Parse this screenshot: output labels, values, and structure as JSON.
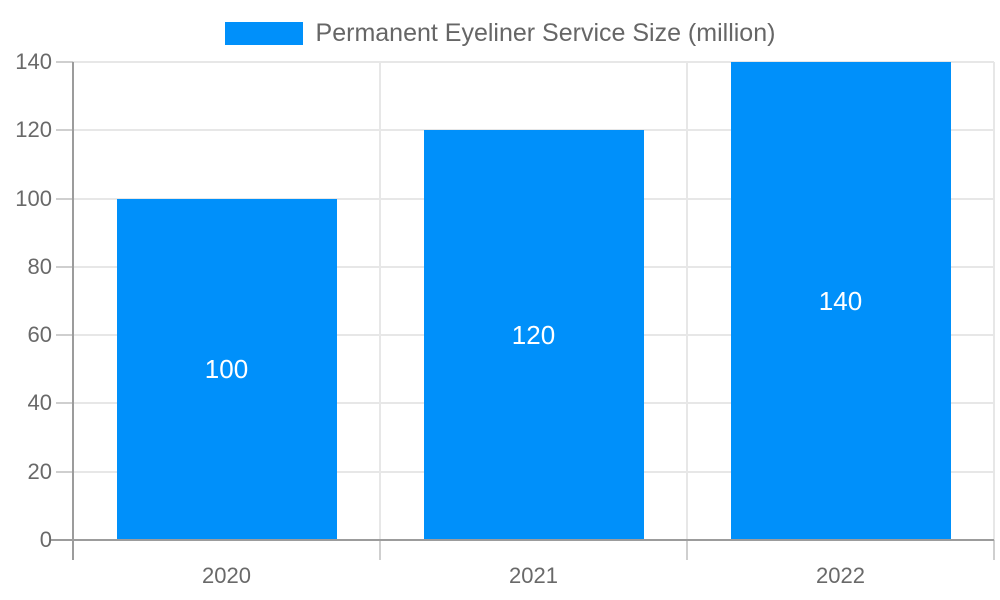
{
  "chart_data": {
    "type": "bar",
    "title": "",
    "legend_position": "top",
    "categories": [
      "2020",
      "2021",
      "2022"
    ],
    "series": [
      {
        "name": "Permanent Eyeliner Service Size (million)",
        "values": [
          100,
          120,
          140
        ],
        "color": "#0090fa"
      }
    ],
    "data_labels": [
      "100",
      "120",
      "140"
    ],
    "data_label_color": "#ffffff",
    "xlabel": "",
    "ylabel": "",
    "ylim": [
      0,
      140
    ],
    "yticks": [
      0,
      20,
      40,
      60,
      80,
      100,
      120,
      140
    ],
    "grid": true
  }
}
